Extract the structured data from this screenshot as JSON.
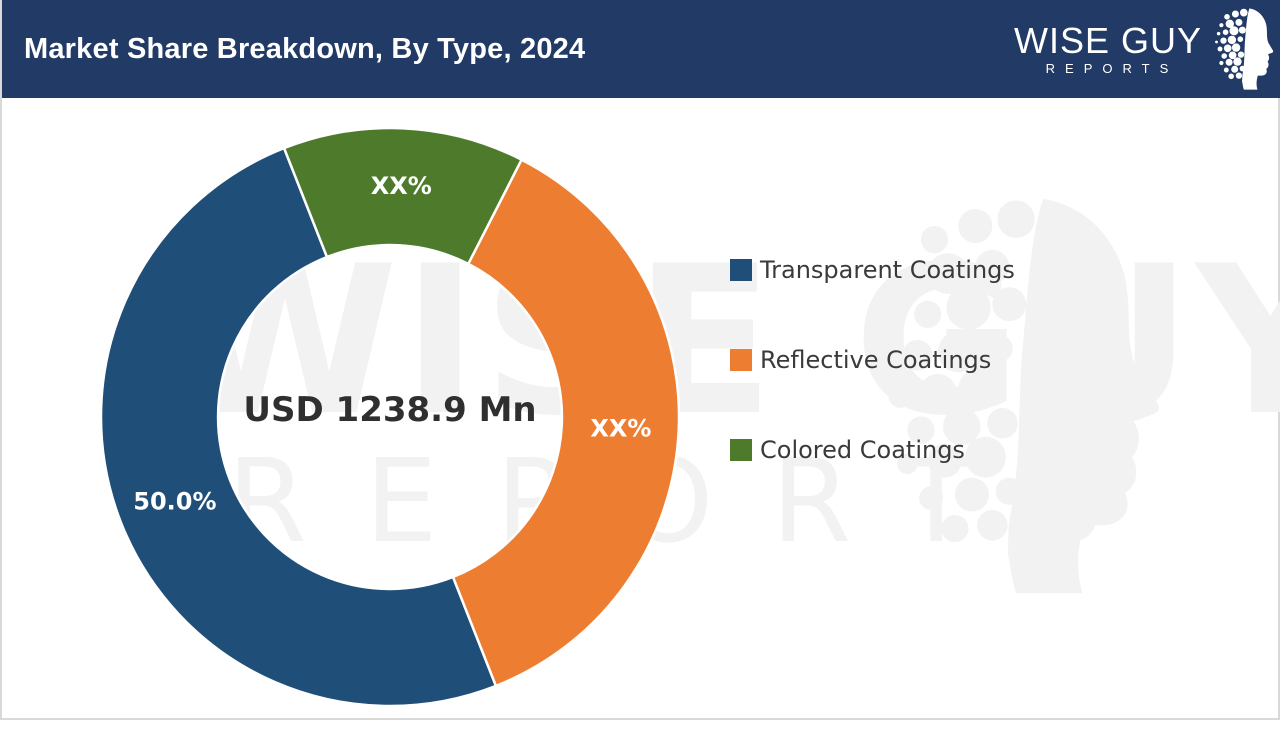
{
  "header": {
    "title": "Market Share Breakdown, By Type, 2024",
    "logo": {
      "line1": "WISE GUY",
      "line2": "REPORTS"
    }
  },
  "watermark": {
    "line1": "WISE GUY",
    "line2": "REPORTS"
  },
  "chart_data": {
    "type": "pie",
    "subtype": "donut",
    "title": "Market Share Breakdown, By Type, 2024",
    "center_label": "USD 1238.9 Mn",
    "start_angle_deg_clockwise_from_top": 158.5,
    "direction": "clockwise",
    "inner_radius_ratio": 0.595,
    "label_radius_ratio": 0.8,
    "segments": [
      {
        "name": "Transparent Coatings",
        "value_pct": 50.0,
        "label": "50.0%",
        "color": "#1f4e79"
      },
      {
        "name": "Colored Coatings",
        "value_pct": 13.5,
        "label": "XX%",
        "color": "#4e7b2b"
      },
      {
        "name": "Reflective Coatings",
        "value_pct": 36.5,
        "label": "XX%",
        "color": "#ed7d31"
      }
    ],
    "legend": [
      {
        "label": "Transparent Coatings",
        "color": "#1f4e79"
      },
      {
        "label": "Reflective Coatings",
        "color": "#ed7d31"
      },
      {
        "label": "Colored Coatings",
        "color": "#4e7b2b"
      }
    ],
    "legend_position": "right"
  },
  "colors": {
    "header_bg": "#223a66",
    "header_text": "#ffffff",
    "center_text": "#2f2f2f",
    "segment_label_text": "#ffffff",
    "legend_text": "#3a3a3a",
    "watermark": "#f2f2f3",
    "canvas_border": "#d9d9d9"
  }
}
